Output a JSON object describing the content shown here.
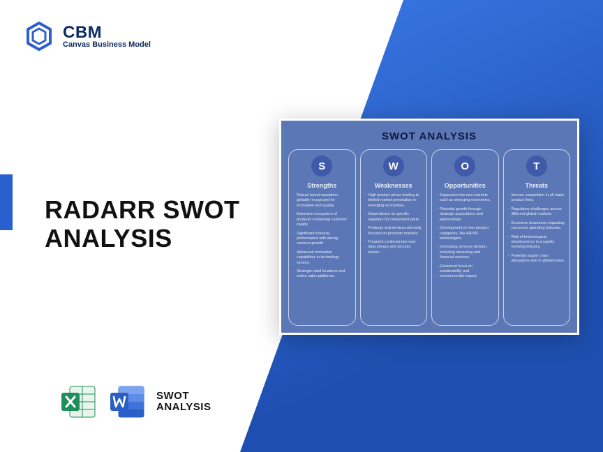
{
  "brand": {
    "title": "CBM",
    "subtitle": "Canvas Business Model",
    "logo_color": "#2a5fd0"
  },
  "headline": {
    "line1": "RADARR SWOT",
    "line2": "ANALYSIS"
  },
  "accent_color": "#2a5fd0",
  "background_gradient": {
    "from": "#3b7ae8",
    "to": "#1e4fb0"
  },
  "files": {
    "excel_color": "#1e8e5a",
    "word_color": "#2b5fc7",
    "label_line1": "SWOT",
    "label_line2": "ANALYSIS"
  },
  "swot": {
    "type": "infographic",
    "card_bg": "#5c77b6",
    "col_border": "#c9d2ea",
    "circle_bg": "#3e5aa8",
    "text_color": "#e8ecf7",
    "title": "SWOT ANALYSIS",
    "columns": [
      {
        "letter": "S",
        "heading": "Strengths",
        "items": [
          "Robust brand reputation globally recognized for innovation and quality.",
          "Extensive ecosystem of products enhancing customer loyalty.",
          "Significant financial performance with strong revenue growth.",
          "Advanced innovation capabilities in technology sectors.",
          "Strategic retail locations and online sales platforms."
        ]
      },
      {
        "letter": "W",
        "heading": "Weaknesses",
        "items": [
          "High product prices leading to limited market penetration in emerging economies.",
          "Dependence on specific suppliers for component parts.",
          "Products and services primarily focused on premium markets.",
          "Frequent controversies over data privacy and security issues."
        ]
      },
      {
        "letter": "O",
        "heading": "Opportunities",
        "items": [
          "Expansion into new markets such as emerging economies.",
          "Potential growth through strategic acquisitions and partnerships.",
          "Development of new product categories, like AR/VR technologies.",
          "Increasing services division, including streaming and financial services.",
          "Enhanced focus on sustainability and environmental impact."
        ]
      },
      {
        "letter": "T",
        "heading": "Threats",
        "items": [
          "Intense competition in all major product lines.",
          "Regulatory challenges across different global markets.",
          "Economic downturns impacting consumer spending behavior.",
          "Risk of technological obsolescence in a rapidly evolving industry.",
          "Potential supply chain disruptions due to global crises."
        ]
      }
    ]
  }
}
